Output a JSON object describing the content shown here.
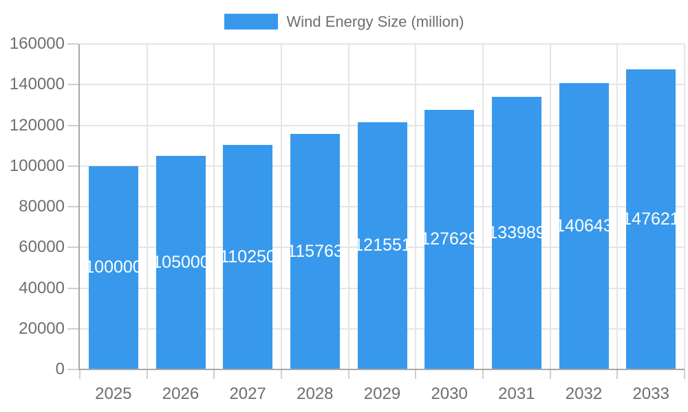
{
  "chart_data": {
    "type": "bar",
    "legend": {
      "label": "Wind Energy Size (million)",
      "position": "top"
    },
    "categories": [
      "2025",
      "2026",
      "2027",
      "2028",
      "2029",
      "2030",
      "2031",
      "2032",
      "2033"
    ],
    "series": [
      {
        "name": "Wind Energy Size (million)",
        "values": [
          100000,
          105000,
          110250,
          115763,
          121551,
          127629,
          133989,
          140643,
          147621
        ]
      }
    ],
    "value_labels": [
      "100000",
      "105000",
      "110250",
      "115763",
      "121551",
      "127629",
      "133989",
      "140643",
      "147621"
    ],
    "xlabel": "",
    "ylabel": "",
    "ylim": [
      0,
      160000
    ],
    "yticks": [
      0,
      20000,
      40000,
      60000,
      80000,
      100000,
      120000,
      140000,
      160000
    ],
    "ytick_labels": [
      "0",
      "20000",
      "40000",
      "60000",
      "80000",
      "100000",
      "120000",
      "140000",
      "160000"
    ],
    "grid": true,
    "legend_position": "top",
    "colors": {
      "bar": "#3899EC",
      "grid_line": "#E5E5E5",
      "axis_line": "#A8A8A8",
      "tick_mark": "#CFCFCF",
      "tick_text": "#6E6E6E",
      "value_label_text": "#FFFFFF",
      "background": "#FFFFFF"
    }
  }
}
